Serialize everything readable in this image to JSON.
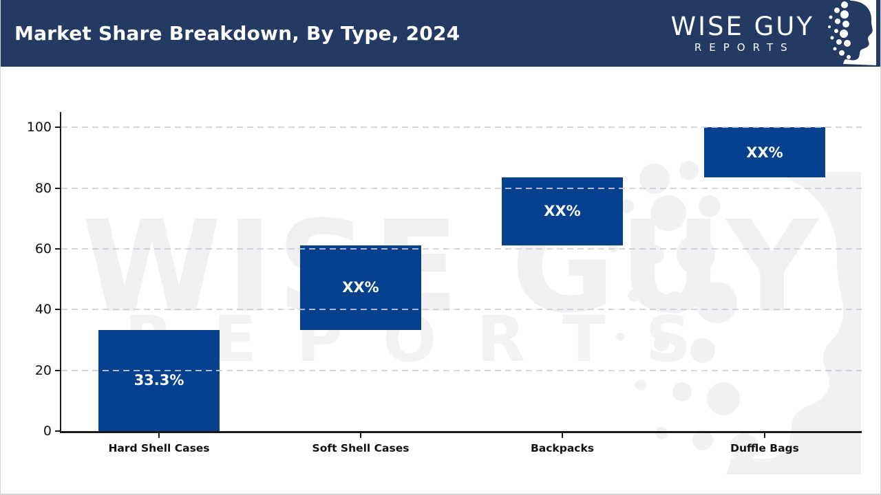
{
  "header": {
    "title": "Market Share Breakdown, By Type, 2024",
    "bg_color": "#233A63",
    "logo": {
      "line1": "WISE GUY",
      "line2": "REPORTS"
    }
  },
  "watermark": {
    "line1": "WISE GUY",
    "line2": "REPORTS"
  },
  "chart_data": {
    "type": "bar",
    "subtype": "waterfall",
    "title": "Market Share Breakdown, By Type, 2024",
    "categories": [
      "Hard Shell Cases",
      "Soft Shell Cases",
      "Backpacks",
      "Duffle Bags"
    ],
    "segments": [
      {
        "category": "Hard Shell Cases",
        "start": 0,
        "end": 33.3,
        "label": "33.3%"
      },
      {
        "category": "Soft Shell Cases",
        "start": 33.3,
        "end": 61.2,
        "label": "XX%"
      },
      {
        "category": "Backpacks",
        "start": 61.2,
        "end": 83.5,
        "label": "XX%"
      },
      {
        "category": "Duffle Bags",
        "start": 83.5,
        "end": 100,
        "label": "XX%"
      }
    ],
    "yticks": [
      0,
      20,
      40,
      60,
      80,
      100
    ],
    "ylim": [
      0,
      105
    ],
    "xlabel": "",
    "ylabel": "",
    "bar_color": "#05418F",
    "grid": "horizontal-dashed",
    "legend": "none"
  }
}
